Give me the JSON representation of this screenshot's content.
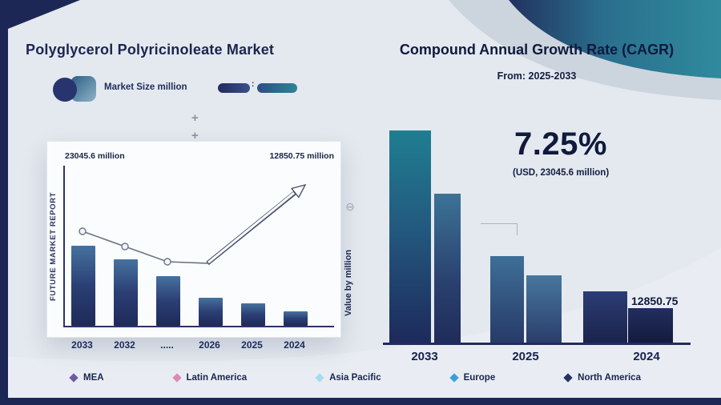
{
  "colors": {
    "navy": "#1d2756",
    "teal": "#2f8a9c",
    "text_dark": "#0f1a3d",
    "background": "#e4e9ef",
    "card": "#fbfcfd"
  },
  "header": {
    "left_title": "Polyglycerol Polyricinoleate  Market",
    "right_title": "Compound Annual Growth Rate (CAGR)",
    "right_subtitle": "From: 2025-2033"
  },
  "left_legend": {
    "label": "Market Size million"
  },
  "watermark": "FUTURE MARKET REPORT",
  "value_axis_label": "Value by million",
  "cagr": {
    "value": "7.25%",
    "note": "(USD, 23045.6 million)"
  },
  "annotations": {
    "left_chart_top_left": "23045.6 million",
    "left_chart_top_right": "12850.75 million",
    "right_chart_value": "12850.75"
  },
  "decor": {
    "plus": "+",
    "zoom_out": "⊖"
  },
  "chart_data": [
    {
      "type": "bar",
      "title": "Polyglycerol Polyricinoleate Market — Market Size million",
      "categories": [
        "2033",
        "2032",
        ".....",
        "2026",
        "2025",
        "2024"
      ],
      "relative_heights": [
        100,
        83,
        62,
        35,
        28,
        18
      ],
      "labeled_values": {
        "2033": 23045.6,
        "2024": 12850.75
      },
      "ylabel": "FUTURE MARKET REPORT",
      "annotations": [
        "23045.6 million",
        "12850.75 million"
      ],
      "note": "stylized descending bars with trend line dropping then arrow rising to top right; only endpoint values are labeled"
    },
    {
      "type": "bar",
      "title": "Compound Annual Growth Rate (CAGR)",
      "subtitle": "From: 2025-2033",
      "categories": [
        "2033",
        "2025",
        "2024"
      ],
      "series": [
        {
          "name": "primary",
          "relative_heights": [
            265,
            108,
            64
          ]
        },
        {
          "name": "secondary",
          "relative_heights": [
            186,
            84,
            43
          ]
        }
      ],
      "cagr": "7.25%",
      "cagr_basis": "(USD, 23045.6 million)",
      "value_label": "12850.75",
      "ylabel": "Value by million"
    }
  ],
  "legend": [
    {
      "label": "MEA",
      "color": "#6d59a5"
    },
    {
      "label": "Latin America",
      "color": "#d88cb8"
    },
    {
      "label": "Asia Pacific",
      "color": "#a6dcef"
    },
    {
      "label": "Europe",
      "color": "#3e9ed9"
    },
    {
      "label": "North America",
      "color": "#27325f"
    }
  ]
}
